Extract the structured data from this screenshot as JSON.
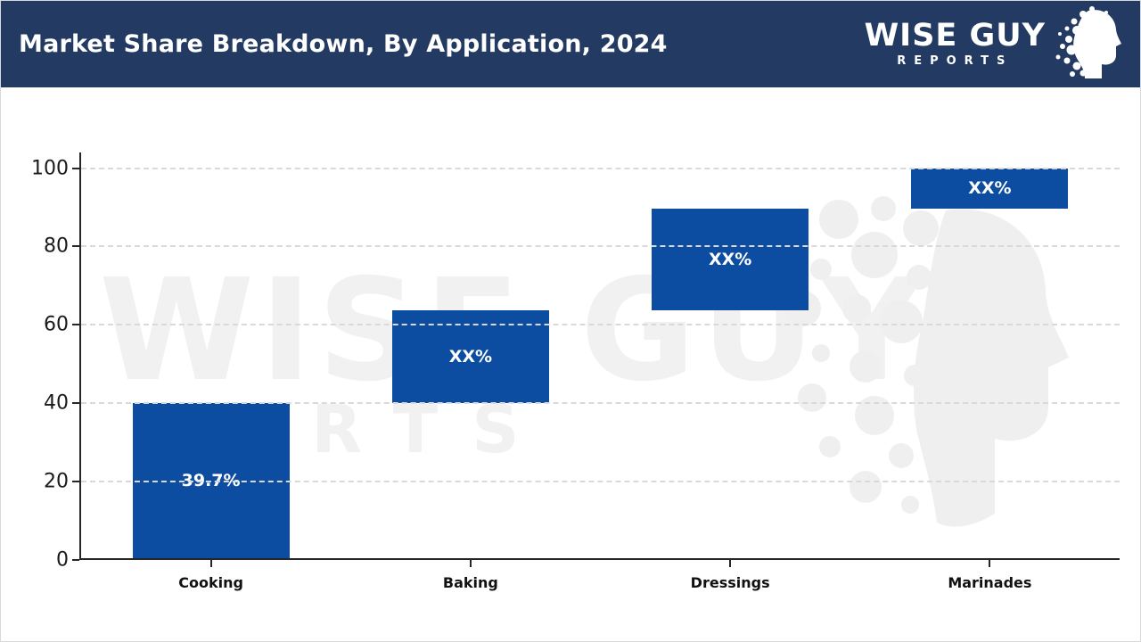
{
  "header": {
    "title": "Market Share Breakdown, By Application, 2024",
    "logo": {
      "line1": "WISE GUY",
      "line2": "REPORTS"
    }
  },
  "watermark": {
    "line1": "WISE GUY",
    "line2": "PORTS"
  },
  "colors": {
    "header_bg": "#233a63",
    "bar_blue": "#0d4da1",
    "gridline": "#d9d9d9",
    "watermark": "#f1f1f1",
    "axis": "#262626"
  },
  "chart_data": {
    "type": "bar",
    "subtype": "waterfall",
    "title": "Market Share Breakdown, By Application, 2024",
    "xlabel": "",
    "ylabel": "",
    "categories": [
      "Cooking",
      "Baking",
      "Dressings",
      "Marinades"
    ],
    "segments": [
      {
        "category": "Cooking",
        "start": 0,
        "end": 39.7,
        "label": "39.7%"
      },
      {
        "category": "Baking",
        "start": 39.7,
        "end": 63.5,
        "label": "XX%"
      },
      {
        "category": "Dressings",
        "start": 63.5,
        "end": 89.5,
        "label": "XX%"
      },
      {
        "category": "Marinades",
        "start": 89.5,
        "end": 100,
        "label": "XX%"
      }
    ],
    "yticks": [
      0,
      20,
      40,
      60,
      80,
      100
    ],
    "ylim": [
      0,
      104
    ],
    "grid": "dashed-horizontal",
    "legend": "none",
    "bar_width_fraction": 0.604
  }
}
